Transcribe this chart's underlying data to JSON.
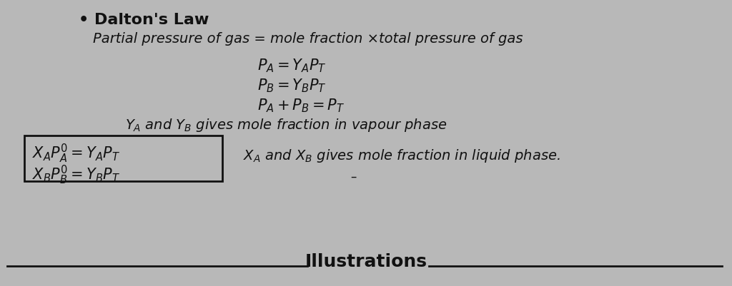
{
  "bg_color": "#b8b8b8",
  "title": "• Dalton's Law",
  "subtitle": "Partial pressure of gas = mole fraction ×total pressure of gas",
  "eq1": "$P_A=Y_AP_T$",
  "eq2": "$P_B=Y_BP_T$",
  "eq3": "$P_A+P_B=P_T$",
  "vapour_text": "$Y_A$ and $Y_B$ gives mole fraction in vapour phase",
  "boxed_eq1": "$X_AP_A^0=Y_AP_T$",
  "boxed_eq2": "$X_BP_B^0=Y_BP_T$",
  "liquid_text": "$X_A$ and $X_B$ gives mole fraction in liquid phase.",
  "dot": "–",
  "illustrations": "Illustrations",
  "title_fontsize": 16,
  "subtitle_fontsize": 14,
  "eq_fontsize": 15,
  "text_fontsize": 14,
  "illus_fontsize": 18,
  "text_color": "#111111",
  "line_color": "#111111"
}
